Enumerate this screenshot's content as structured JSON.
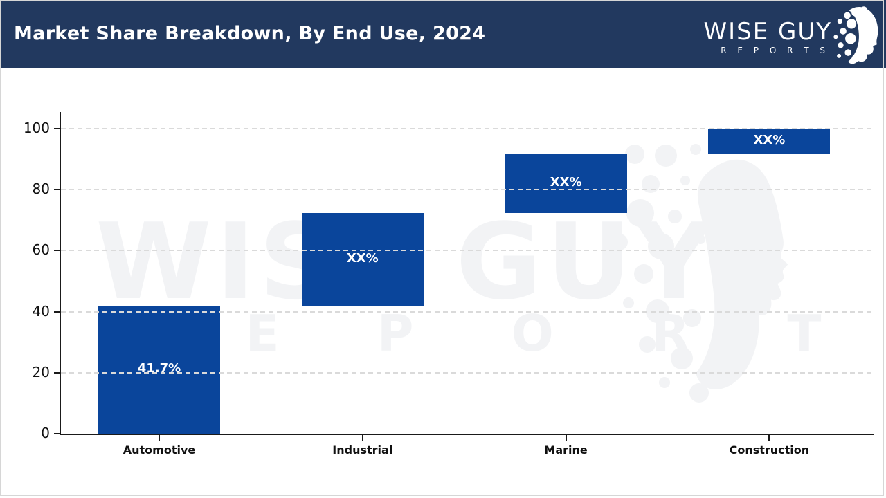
{
  "header": {
    "title": "Market Share Breakdown, By End Use, 2024",
    "logo": {
      "line1": "WISE GUY",
      "line2": "R E P O R T S"
    }
  },
  "watermark": {
    "line1": "WISE GUY",
    "line2": "R E P O R T S"
  },
  "chart_data": {
    "type": "bar",
    "subtype": "waterfall",
    "title": "Market Share Breakdown, By End Use, 2024",
    "categories": [
      "Automotive",
      "Industrial",
      "Marine",
      "Construction"
    ],
    "series": [
      {
        "name": "Market Share (%)",
        "segments": [
          {
            "category": "Automotive",
            "start": 0,
            "end": 41.7,
            "value": 41.7,
            "label": "41.7%"
          },
          {
            "category": "Industrial",
            "start": 41.7,
            "end": 72.3,
            "value": 30.6,
            "label": "XX%"
          },
          {
            "category": "Marine",
            "start": 72.3,
            "end": 91.5,
            "value": 19.2,
            "label": "XX%"
          },
          {
            "category": "Construction",
            "start": 91.5,
            "end": 100,
            "value": 8.5,
            "label": "XX%"
          }
        ]
      }
    ],
    "xlabel": "",
    "ylabel": "",
    "ylim": [
      0,
      105
    ],
    "yticks": [
      0,
      20,
      40,
      60,
      80,
      100
    ],
    "grid": "horizontal-dashed-over-bars",
    "legend": "none"
  },
  "colors": {
    "header_bg": "#22395F",
    "bar": "#0A459B",
    "bar_label": "#FFFFFF",
    "axis": "#1A1A1A",
    "grid": "#DADADA",
    "watermark": "#F2F3F5",
    "frame": "#D6D6D6",
    "title_text": "#FFFFFF"
  }
}
